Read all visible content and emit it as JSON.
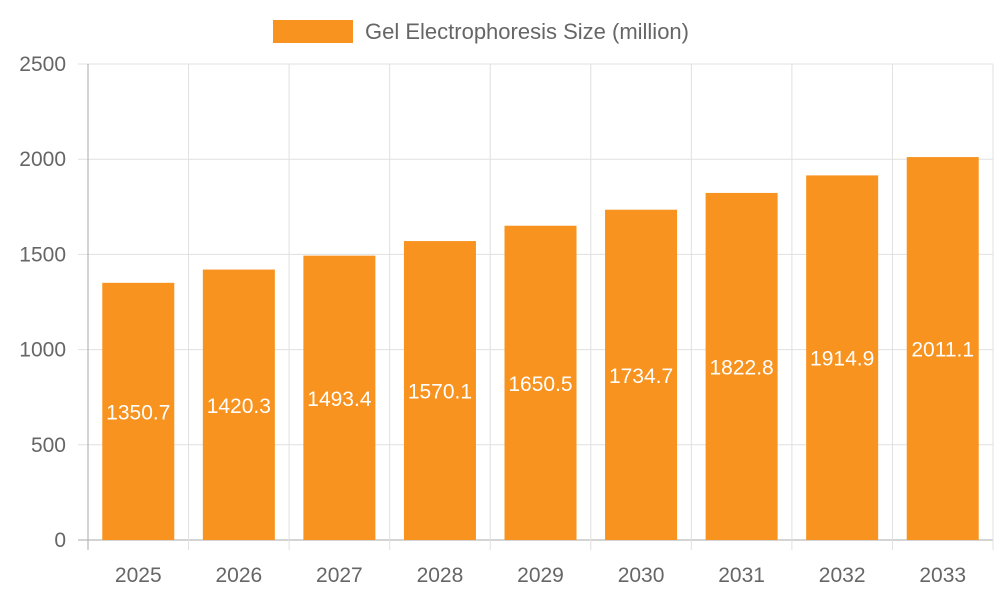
{
  "chart_data": {
    "type": "bar",
    "title": "",
    "xlabel": "",
    "ylabel": "",
    "categories": [
      "2025",
      "2026",
      "2027",
      "2028",
      "2029",
      "2030",
      "2031",
      "2032",
      "2033"
    ],
    "series": [
      {
        "name": "Gel Electrophoresis Size (million)",
        "values": [
          1350.7,
          1420.3,
          1493.4,
          1570.1,
          1650.5,
          1734.7,
          1822.8,
          1914.9,
          2011.1
        ]
      }
    ],
    "ylim": [
      0,
      2500
    ],
    "yticks": [
      0,
      500,
      1000,
      1500,
      2000,
      2500
    ],
    "grid": true,
    "legend": "top-center",
    "data_labels": "inside-center",
    "colors": {
      "bar": "#F7931E",
      "grid": "#e0e0e0",
      "text": "#666666",
      "label": "#ffffff"
    }
  }
}
